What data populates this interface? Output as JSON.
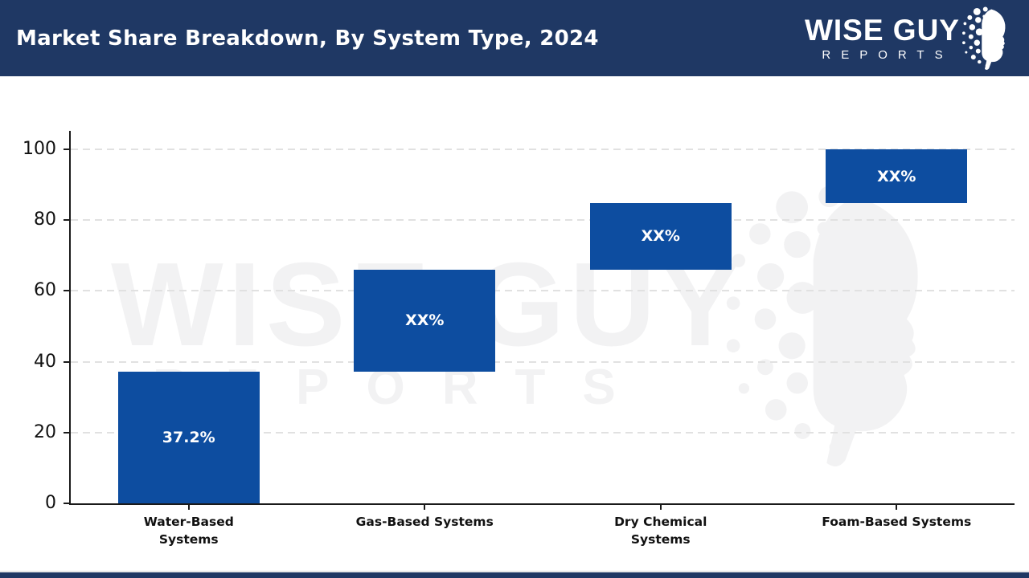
{
  "header": {
    "title": "Market Share Breakdown, By System Type, 2024",
    "logo": {
      "line1": "WISE GUY",
      "line2": "REPORTS"
    }
  },
  "watermark": {
    "line1": "WISE GUY",
    "line2": "REPORTS"
  },
  "colors": {
    "header_bg": "#1f3864",
    "footer_bg": "#1f3864",
    "bar": "#0d4da0",
    "bar_label": "#ffffff",
    "axis": "#1a1a1a",
    "grid": "#e1e1e1",
    "watermark": "#f2f2f3",
    "title_text": "#ffffff"
  },
  "chart_data": {
    "type": "bar",
    "subtype": "waterfall",
    "title": "Market Share Breakdown, By System Type, 2024",
    "categories": [
      "Water-Based Systems",
      "Gas-Based Systems",
      "Dry Chemical Systems",
      "Foam-Based Systems"
    ],
    "tick_lines": [
      [
        "Water-Based",
        "Systems"
      ],
      [
        "Gas-Based Systems"
      ],
      [
        "Dry Chemical",
        "Systems"
      ],
      [
        "Foam-Based Systems"
      ]
    ],
    "segments": [
      {
        "category": "Water-Based Systems",
        "start": 0,
        "end": 37.2,
        "value": 37.2,
        "label": "37.2%"
      },
      {
        "category": "Gas-Based Systems",
        "start": 37.2,
        "end": 66,
        "value": 28.8,
        "label": "XX%"
      },
      {
        "category": "Dry Chemical Systems",
        "start": 66,
        "end": 84.8,
        "value": 18.8,
        "label": "XX%"
      },
      {
        "category": "Foam-Based Systems",
        "start": 84.8,
        "end": 100,
        "value": 15.2,
        "label": "XX%"
      }
    ],
    "yticks": [
      0,
      20,
      40,
      60,
      80,
      100
    ],
    "ylim": [
      0,
      105
    ],
    "xlabel": "",
    "ylabel": "",
    "grid": "horizontal-dashed",
    "legend": "none"
  }
}
